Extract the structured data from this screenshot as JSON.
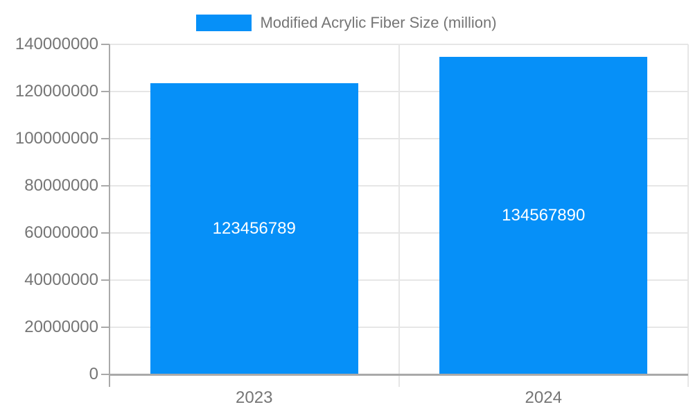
{
  "chart_data": {
    "type": "bar",
    "title": "",
    "legend": "Modified Acrylic Fiber Size (million)",
    "legend_position": "top-center",
    "categories": [
      "2023",
      "2024"
    ],
    "series": [
      {
        "name": "Modified Acrylic Fiber Size (million)",
        "values": [
          123456789,
          134567890
        ],
        "data_labels": [
          "123456789",
          "134567890"
        ]
      }
    ],
    "xlabel": "",
    "ylabel": "",
    "ylim": [
      0,
      140000000
    ],
    "ytick_step": 20000000,
    "ytick_labels": [
      "0",
      "20000000",
      "40000000",
      "60000000",
      "80000000",
      "100000000",
      "120000000",
      "140000000"
    ],
    "grid": true,
    "data_labels_inside_bars": true,
    "colors": {
      "bar": "#0690F8",
      "grid_line": "#E6E6E6",
      "axis_line": "#A9A9A9",
      "tick_line": "#A9A9A9",
      "axis_text": "#757575",
      "data_label_text": "#FFFFFF",
      "background": "#FFFFFF"
    }
  }
}
